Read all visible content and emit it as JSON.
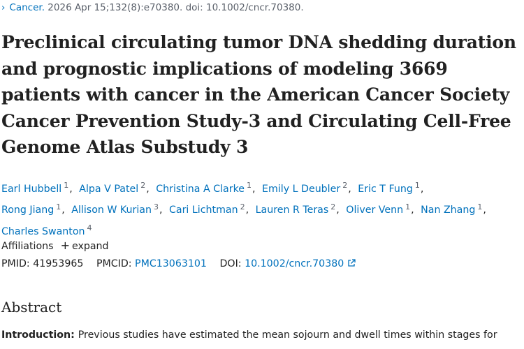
{
  "citation": {
    "journal": "Cancer.",
    "details": "2026 Apr 15;132(8):e70380. doi: 10.1002/cncr.70380."
  },
  "title": "Preclinical circulating tumor DNA shedding duration and prognostic implications of modeling 3669 patients with cancer in the American Cancer Society Cancer Prevention Study-3 and Circulating Cell-Free Genome Atlas Substudy 3",
  "author_separator": ",",
  "authors": [
    {
      "name": "Earl Hubbell",
      "aff": "1"
    },
    {
      "name": "Alpa V Patel",
      "aff": "2"
    },
    {
      "name": "Christina A Clarke",
      "aff": "1"
    },
    {
      "name": "Emily L Deubler",
      "aff": "2"
    },
    {
      "name": "Eric T Fung",
      "aff": "1"
    },
    {
      "name": "Rong Jiang",
      "aff": "1"
    },
    {
      "name": "Allison W Kurian",
      "aff": "3"
    },
    {
      "name": "Cari Lichtman",
      "aff": "2"
    },
    {
      "name": "Lauren R Teras",
      "aff": "2"
    },
    {
      "name": "Oliver Venn",
      "aff": "1"
    },
    {
      "name": "Nan Zhang",
      "aff": "1"
    },
    {
      "name": "Charles Swanton",
      "aff": "4"
    }
  ],
  "affiliations": {
    "label": "Affiliations",
    "toggle": "expand"
  },
  "ids": {
    "pmid_label": "PMID:",
    "pmid": "41953965",
    "pmcid_label": "PMCID:",
    "pmcid": "PMC13063101",
    "doi_label": "DOI:",
    "doi": "10.1002/cncr.70380"
  },
  "abstract": {
    "heading": "Abstract",
    "intro_label": "Introduction:",
    "intro_text": "Previous studies have estimated the mean sojourn and dwell times within stages for"
  }
}
